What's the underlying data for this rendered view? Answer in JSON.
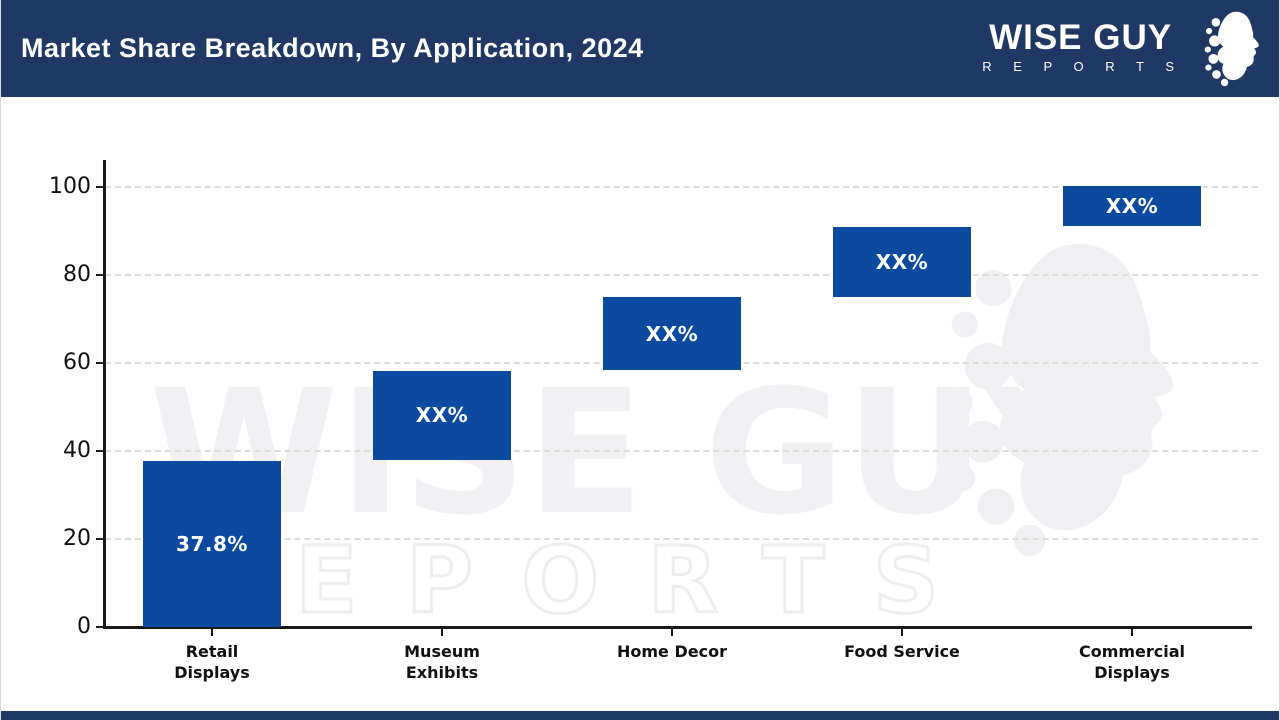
{
  "header": {
    "title": "Market Share Breakdown, By Application, 2024",
    "bg_color": "#1f3864",
    "logo": {
      "line1": "WISE GUY",
      "line2": "R E P O R T S"
    }
  },
  "watermark": {
    "line1": "WISE GUY",
    "line2": "REPORTS"
  },
  "footer": {
    "bg_color": "#1f3864"
  },
  "chart_data": {
    "type": "bar",
    "subtype": "floating-segment-waterfall",
    "title": "Market Share Breakdown, By Application, 2024",
    "categories": [
      "Retail Displays",
      "Museum Exhibits",
      "Home Decor",
      "Food Service",
      "Commercial Displays"
    ],
    "segments": [
      {
        "category": "Retail Displays",
        "start": 0,
        "end": 37.8,
        "label": "37.8%"
      },
      {
        "category": "Museum Exhibits",
        "start": 38,
        "end": 58.2,
        "label": "XX%"
      },
      {
        "category": "Home Decor",
        "start": 58.4,
        "end": 75,
        "label": "XX%"
      },
      {
        "category": "Food Service",
        "start": 75,
        "end": 90.9,
        "label": "XX%"
      },
      {
        "category": "Commercial Displays",
        "start": 91.1,
        "end": 100.2,
        "label": "XX%"
      }
    ],
    "xlabel": "",
    "ylabel": "",
    "ylim": [
      0,
      106
    ],
    "yticks": [
      0,
      20,
      40,
      60,
      80,
      100
    ],
    "grid": "horizontal-dashed",
    "legend": "none",
    "bar_color": "#0b4a9f",
    "bar_label_color": "#ffffff",
    "axis_color": "#1a1a1a"
  }
}
